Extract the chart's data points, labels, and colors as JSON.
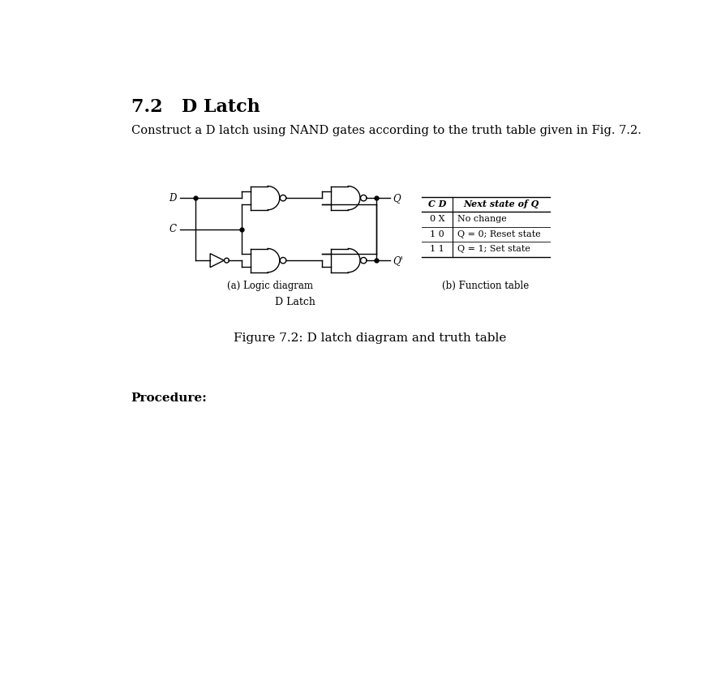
{
  "title": "7.2   D Latch",
  "subtitle": "Construct a D latch using NAND gates according to the truth table given in Fig. 7.2.",
  "figure_caption": "Figure 7.2: D latch diagram and truth table",
  "diagram_label": "D Latch",
  "logic_label": "(a) Logic diagram",
  "function_label": "(b) Function table",
  "table_header_col1": "C D",
  "table_header_col2": "Next state of Q",
  "table_rows": [
    [
      "0 X",
      "No change"
    ],
    [
      "1 0",
      "Q = 0; Reset state"
    ],
    [
      "1 1",
      "Q = 1; Set state"
    ]
  ],
  "procedure_label": "Procedure:",
  "bg_color": "#ffffff",
  "line_color": "#000000",
  "font_color": "#000000"
}
